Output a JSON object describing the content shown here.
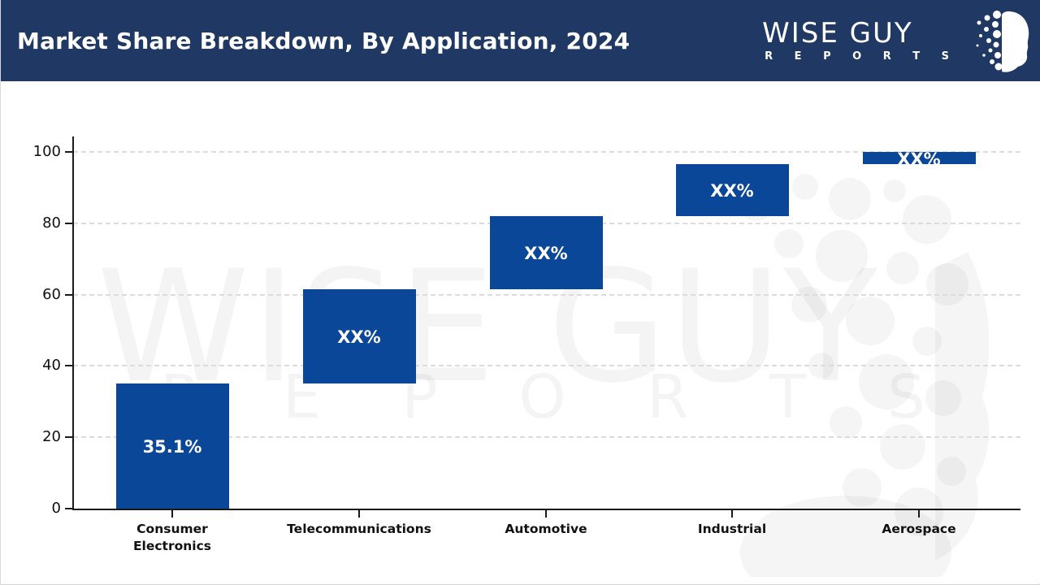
{
  "header": {
    "title": "Market Share Breakdown, By Application, 2024",
    "logo": {
      "wordmark": "WISE GUY",
      "subtext": "R E P O R T S",
      "face_icon": "dotted-head-profile"
    }
  },
  "watermark": {
    "line1": "WISE GUY",
    "line2": "R E P O R T S",
    "face_icon": "dotted-head-profile"
  },
  "colors": {
    "header_bg": "#1f3864",
    "bar_fill": "#0b4799",
    "bar_label_text": "#ffffff",
    "axis": "#1a1a1a",
    "gridline": "#dcdcdc",
    "tick_text": "#111111"
  },
  "chart_data": {
    "type": "bar",
    "variant": "floating-waterfall",
    "title": "Market Share Breakdown, By Application, 2024",
    "xlabel": "",
    "ylabel": "",
    "ylim": [
      0,
      100
    ],
    "yticks": [
      0,
      20,
      40,
      60,
      80,
      100
    ],
    "grid": {
      "horizontal": true,
      "style": "dashed",
      "legend": "none"
    },
    "categories": [
      "Consumer Electronics",
      "Telecommunications",
      "Automotive",
      "Industrial",
      "Aerospace"
    ],
    "category_label_lines": [
      [
        "Consumer",
        "Electronics"
      ],
      [
        "Telecommunications"
      ],
      [
        "Automotive"
      ],
      [
        "Industrial"
      ],
      [
        "Aerospace"
      ]
    ],
    "segments": [
      {
        "category": "Consumer Electronics",
        "start": 0,
        "end": 35.1,
        "label": "35.1%"
      },
      {
        "category": "Telecommunications",
        "start": 35.1,
        "end": 61.5,
        "label": "XX%"
      },
      {
        "category": "Automotive",
        "start": 61.5,
        "end": 82.0,
        "label": "XX%"
      },
      {
        "category": "Industrial",
        "start": 82.0,
        "end": 96.5,
        "label": "XX%"
      },
      {
        "category": "Aerospace",
        "start": 96.5,
        "end": 100,
        "label": "XX%"
      }
    ]
  }
}
